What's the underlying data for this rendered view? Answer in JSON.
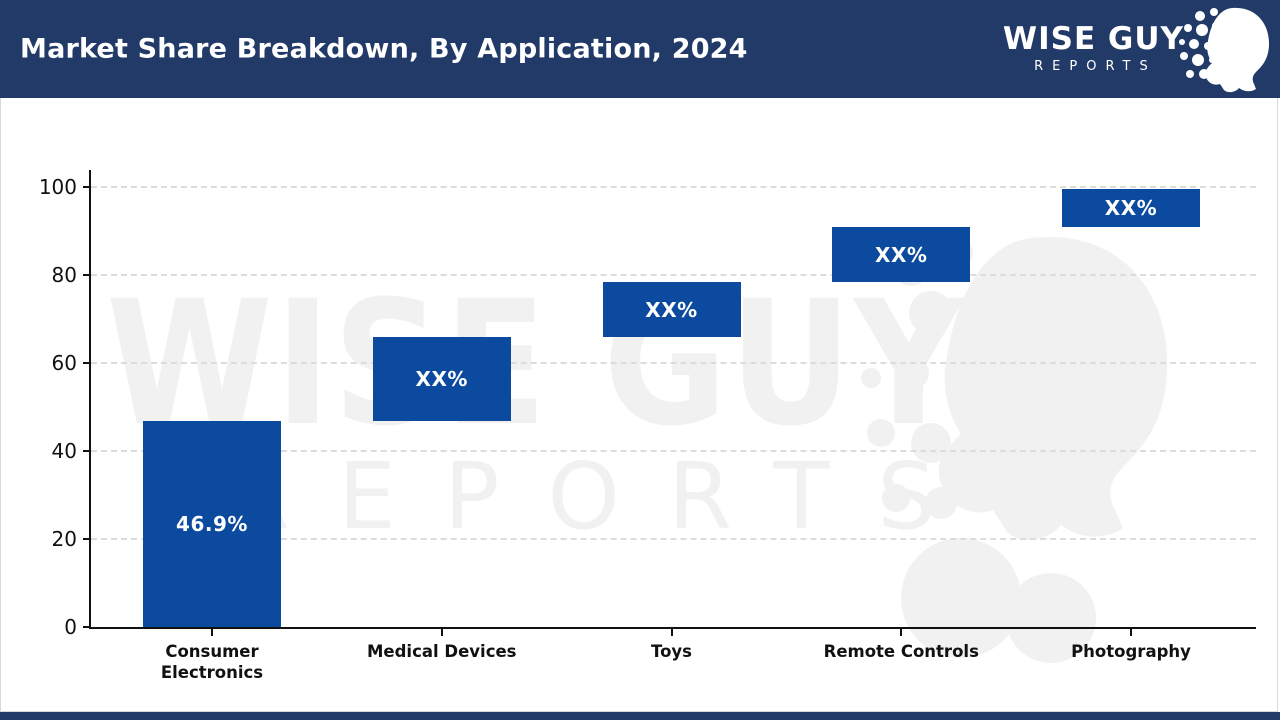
{
  "header": {
    "title": "Market Share Breakdown, By Application, 2024",
    "logo": {
      "line1": "WISE GUY",
      "line2": "REPORTS"
    }
  },
  "watermark": {
    "line1": "WISE GUY",
    "line2": "REPORTS"
  },
  "chart_data": {
    "type": "bar",
    "subtype": "waterfall",
    "title": "Market Share Breakdown, By Application, 2024",
    "categories": [
      "Consumer Electronics",
      "Medical Devices",
      "Toys",
      "Remote Controls",
      "Photography"
    ],
    "segments": [
      [
        0,
        46.9
      ],
      [
        46.9,
        65.8
      ],
      [
        65.8,
        78.3
      ],
      [
        78.3,
        90.8
      ],
      [
        90.8,
        99.6
      ]
    ],
    "bar_labels": [
      "46.9%",
      "XX%",
      "XX%",
      "XX%",
      "XX%"
    ],
    "yticks": [
      0,
      20,
      40,
      60,
      80,
      100
    ],
    "ylim": [
      0,
      104
    ],
    "xlabel": "",
    "ylabel": "",
    "grid": "horizontal-dashed",
    "legend": "none",
    "bar_color": "#0b4a9e",
    "bar_label_color": "#ffffff",
    "accent_navy": "#223a67"
  }
}
